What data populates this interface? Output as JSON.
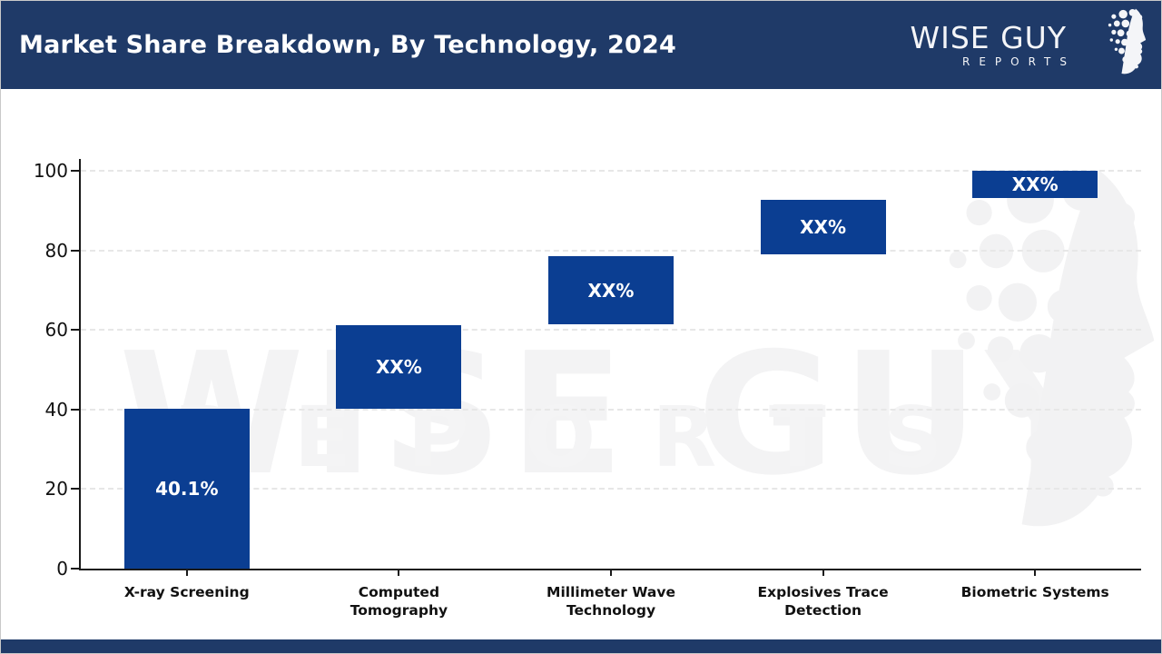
{
  "header": {
    "title": "Market Share Breakdown, By Technology, 2024",
    "logo": {
      "line1": "WISE GUY",
      "line2": "REPORTS",
      "head_icon": "dotted-face-profile"
    }
  },
  "watermark": {
    "line1": "WISE GUY",
    "line2": "REPORTS",
    "head_icon": "dotted-face-profile"
  },
  "colors": {
    "header_bg": "#1f3a68",
    "footer_bg": "#1f3a68",
    "bar": "#0b3e92",
    "bar_label": "#ffffff",
    "axis": "#1a1a1a",
    "grid": "#e7e7e7",
    "watermark": "#f3f3f4",
    "title_text": "#ffffff"
  },
  "chart_data": {
    "type": "bar",
    "subtype": "waterfall",
    "title": "Market Share Breakdown, By Technology, 2024",
    "categories": [
      "X-ray Screening",
      "Computed Tomography",
      "Millimeter Wave Technology",
      "Explosives Trace Detection",
      "Biometric Systems"
    ],
    "segments": [
      {
        "category": "X-ray Screening",
        "start": 0,
        "end": 40.1,
        "label": "40.1%"
      },
      {
        "category": "Computed Tomography",
        "start": 40.1,
        "end": 61.2,
        "label": "XX%"
      },
      {
        "category": "Millimeter Wave Technology",
        "start": 61.3,
        "end": 78.5,
        "label": "XX%"
      },
      {
        "category": "Explosives Trace Detection",
        "start": 78.9,
        "end": 92.6,
        "label": "XX%"
      },
      {
        "category": "Biometric Systems",
        "start": 93.1,
        "end": 100,
        "label": "XX%"
      }
    ],
    "ylim": [
      0,
      100
    ],
    "yticks": [
      0,
      20,
      40,
      60,
      80,
      100
    ],
    "xlabel": "",
    "ylabel": "",
    "grid": "horizontal-dashed",
    "legend": "none",
    "bar_value_labels_inside": true
  }
}
